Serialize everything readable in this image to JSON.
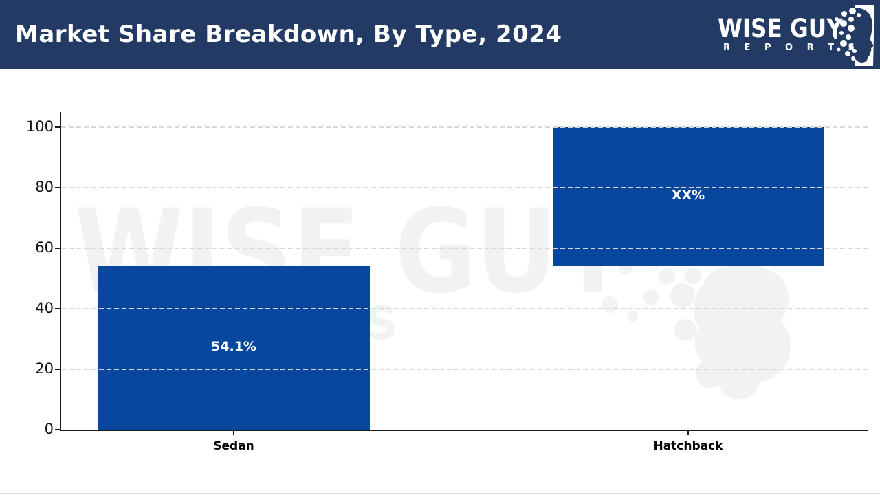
{
  "header": {
    "title": "Market Share Breakdown, By Type, 2024",
    "logo": {
      "line1": "WISE GUY",
      "line2": "R E P O R T S"
    }
  },
  "watermark": {
    "line1": "WISE GUY",
    "line2": "R T S"
  },
  "chart_data": {
    "type": "bar",
    "subtype": "waterfall-style market share bars",
    "title": "Market Share Breakdown, By Type, 2024",
    "categories": [
      "Sedan",
      "Hatchback"
    ],
    "bars": [
      {
        "category": "Sedan",
        "start": 0,
        "end": 54.1,
        "label": "54.1%"
      },
      {
        "category": "Hatchback",
        "start": 54.1,
        "end": 100,
        "label": "XX%"
      }
    ],
    "values_note": "Sedan bar rises 0→54.1; Hatchback bar floats 54.1→100 (labelled XX%)",
    "xlabel": "",
    "ylabel": "",
    "yticks": [
      0,
      20,
      40,
      60,
      80,
      100
    ],
    "ylim": [
      0,
      105
    ],
    "grid": "horizontal dashed, drawn over bars",
    "legend": "none",
    "bar_color": "#08479e"
  },
  "colors": {
    "header_bg": "#233a64",
    "bar": "#08479e",
    "gridline": "#d8d8d8",
    "axis": "#1a1a1a",
    "watermark": "#f2f2f4",
    "bar_label_text": "#ffffff",
    "title_text": "#ffffff"
  }
}
